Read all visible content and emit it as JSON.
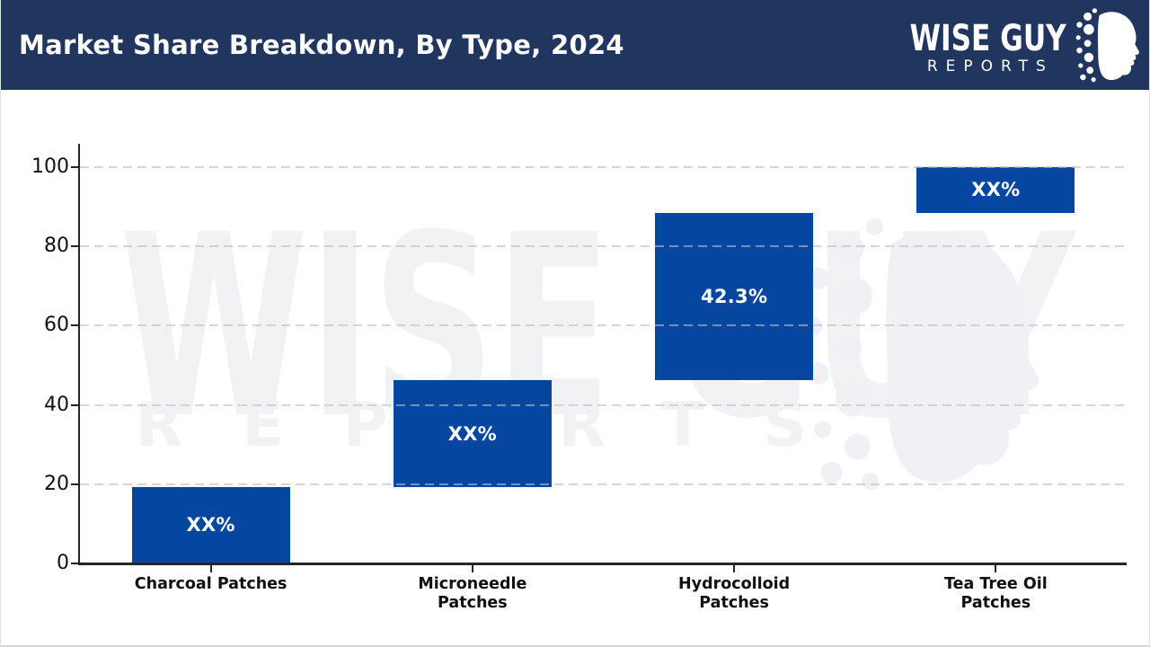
{
  "header": {
    "title": "Market Share Breakdown, By Type, 2024",
    "bg_color": "#21365F",
    "logo": {
      "line1": "WISE GUY",
      "line2": "REPORTS"
    }
  },
  "watermark": {
    "line1": "WISE GUY",
    "line2": "REPORTS"
  },
  "chart_data": {
    "type": "bar",
    "variant": "waterfall-floating-segments",
    "title": "Market Share Breakdown, By Type, 2024",
    "categories": [
      [
        "Charcoal Patches"
      ],
      [
        "Microneedle",
        "Patches"
      ],
      [
        "Hydrocolloid",
        "Patches"
      ],
      [
        "Tea Tree Oil",
        "Patches"
      ]
    ],
    "segments": [
      {
        "category": "Charcoal Patches",
        "start": 0,
        "end": 19.3,
        "height": 19.3,
        "label": "XX%"
      },
      {
        "category": "Microneedle Patches",
        "start": 19.3,
        "end": 46.2,
        "height": 26.9,
        "label": "XX%"
      },
      {
        "category": "Hydrocolloid Patches",
        "start": 46.2,
        "end": 88.5,
        "height": 42.3,
        "label": "42.3%"
      },
      {
        "category": "Tea Tree Oil Patches",
        "start": 88.5,
        "end": 100,
        "height": 11.5,
        "label": "XX%"
      }
    ],
    "xlabel": "",
    "ylabel": "",
    "ylim": [
      0,
      100
    ],
    "yticks": [
      0,
      20,
      40,
      60,
      80,
      100
    ],
    "grid": {
      "horizontal": true,
      "style": "dashed",
      "color": "#d9d9d9"
    },
    "legend": "none",
    "bar_color": "#0546A1",
    "bar_label_color": "#ffffff",
    "axis_color": "#262626"
  }
}
